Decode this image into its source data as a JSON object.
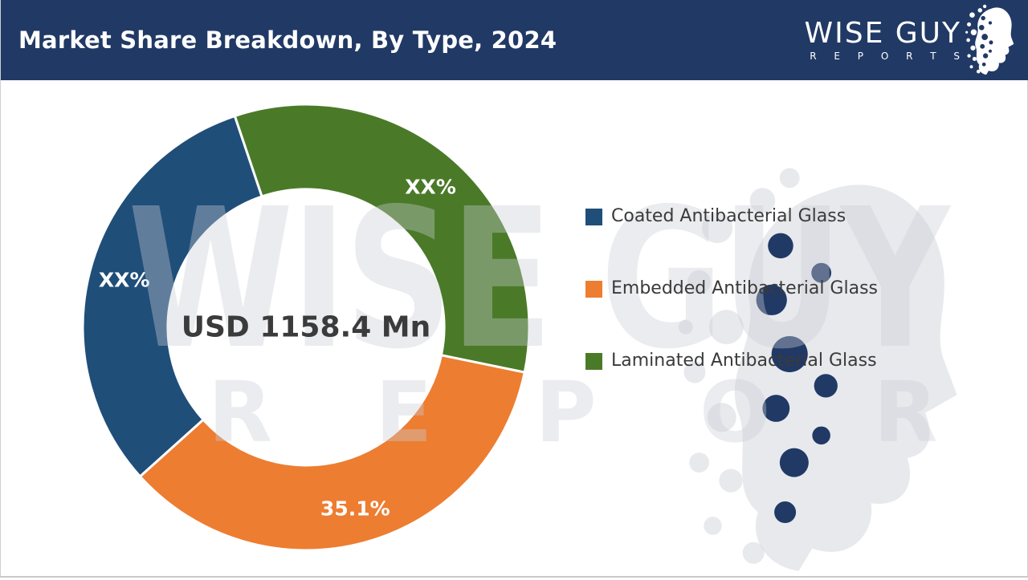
{
  "header": {
    "title": "Market Share Breakdown, By Type, 2024",
    "logo": {
      "wordmark": "WISE GUY",
      "subtext": "REPORTS"
    }
  },
  "watermark": {
    "line1": "WISE GUY",
    "line2": "REPORTS"
  },
  "chart_data": {
    "type": "pie",
    "donut": true,
    "title": "Market Share Breakdown, By Type, 2024",
    "center_label": "USD 1158.4 Mn",
    "start_angle_deg": 108.6,
    "direction": "counterclockwise",
    "legend_position": "right",
    "slices": [
      {
        "label": "Coated Antibacterial Glass",
        "value_pct": 31.5,
        "display_label": "XX%",
        "color": "#1f4e79"
      },
      {
        "label": "Embedded Antibacterial Glass",
        "value_pct": 35.1,
        "display_label": "35.1%",
        "color": "#ed7d31"
      },
      {
        "label": "Laminated Antibacterial Glass",
        "value_pct": 33.4,
        "display_label": "XX%",
        "color": "#4a7a28"
      }
    ]
  },
  "colors": {
    "header_bg": "#213965",
    "slice_label_text": "#ffffff",
    "center_text": "#3b3b3b",
    "legend_text": "#3a3a3a"
  }
}
